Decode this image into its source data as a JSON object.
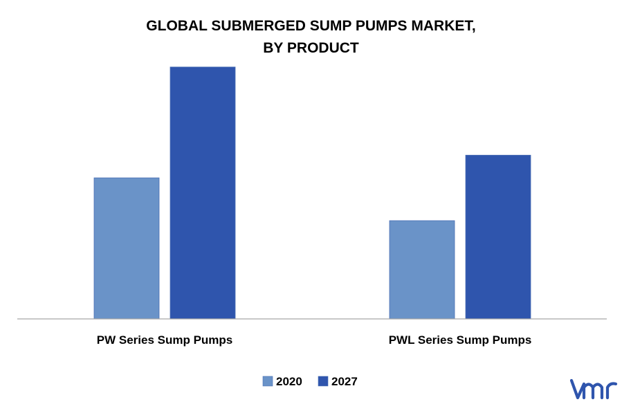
{
  "chart_data": {
    "type": "bar",
    "title_lines": [
      "GLOBAL SUBMERGED SUMP PUMPS MARKET,",
      "BY PRODUCT"
    ],
    "categories": [
      "PW Series Sump Pumps",
      "PWL Series Sump Pumps"
    ],
    "series": [
      {
        "name": "2020",
        "color": "#6a93c8",
        "values": [
          5.6,
          3.9
        ]
      },
      {
        "name": "2027",
        "color": "#2f55ad",
        "values": [
          10.0,
          6.5
        ]
      }
    ],
    "ylim": [
      0,
      10.6
    ],
    "grid": false,
    "legend_position": "bottom-center"
  },
  "brand": {
    "logo_text": "vmr",
    "logo_color": "#2f55ad"
  }
}
